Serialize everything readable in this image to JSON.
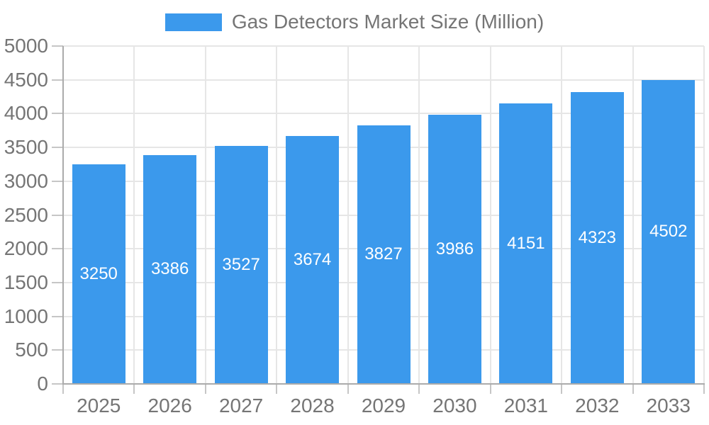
{
  "chart_data": {
    "type": "bar",
    "title": "",
    "legend": {
      "label": "Gas Detectors Market Size (Million)",
      "position": "top"
    },
    "categories": [
      "2025",
      "2026",
      "2027",
      "2028",
      "2029",
      "2030",
      "2031",
      "2032",
      "2033"
    ],
    "series": [
      {
        "name": "Gas Detectors Market Size (Million)",
        "values": [
          3250,
          3386,
          3527,
          3674,
          3827,
          3986,
          4151,
          4323,
          4502
        ]
      }
    ],
    "value_labels": [
      "3250",
      "3386",
      "3527",
      "3674",
      "3827",
      "3986",
      "4151",
      "4323",
      "4502"
    ],
    "xlabel": "",
    "ylabel": "",
    "ylim": [
      0,
      5000
    ],
    "ytick_step": 500,
    "ytick_labels": [
      "0",
      "500",
      "1000",
      "1500",
      "2000",
      "2500",
      "3000",
      "3500",
      "4000",
      "4500",
      "5000"
    ],
    "grid": true,
    "legend_position": "top",
    "colors": {
      "bar": "#3B99EC",
      "value_label": "#FFFFFF",
      "axis_line": "#ABABAB",
      "tick": "#C6C6C6",
      "gridline": "#E6E6E6",
      "text": "#757575"
    }
  }
}
